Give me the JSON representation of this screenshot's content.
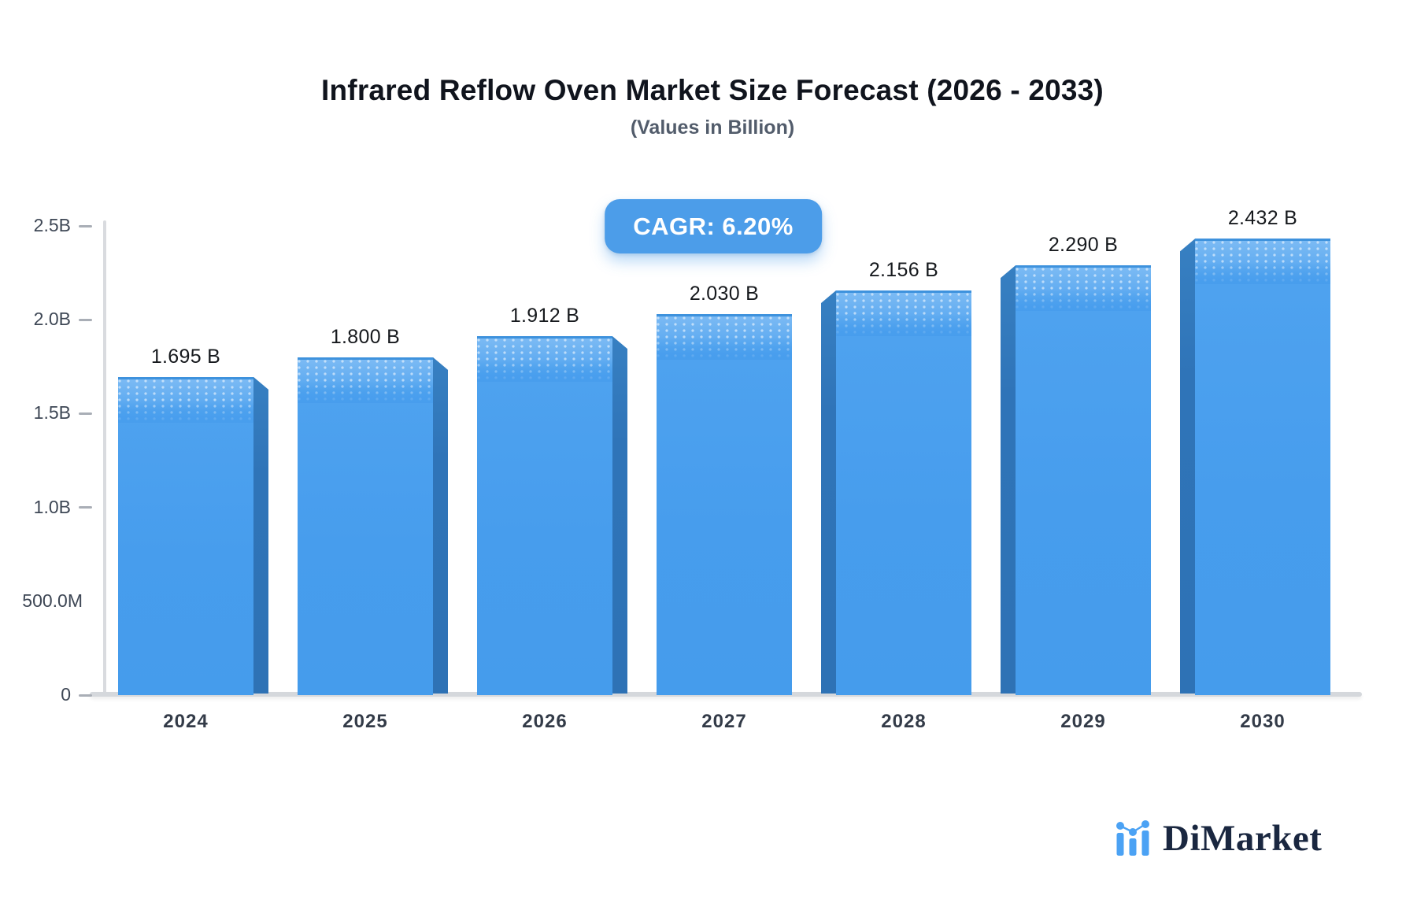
{
  "chart_data": {
    "type": "bar",
    "title": "Infrared Reflow Oven Market Size Forecast (2026 - 2033)",
    "subtitle": "(Values in Billion)",
    "cagr_label": "CAGR: 6.20%",
    "categories": [
      "2024",
      "2025",
      "2026",
      "2027",
      "2028",
      "2029",
      "2030"
    ],
    "values": [
      1.695,
      1.8,
      1.912,
      2.03,
      2.156,
      2.29,
      2.432
    ],
    "value_labels": [
      "1.695 B",
      "1.800 B",
      "1.912 B",
      "2.030 B",
      "2.156 B",
      "2.290 B",
      "2.432 B"
    ],
    "unit": "Billion",
    "ylim": [
      0,
      2.5
    ],
    "yticks": [
      {
        "value": 2.5,
        "label": "2.5B",
        "dash": true
      },
      {
        "value": 2.0,
        "label": "2.0B",
        "dash": true
      },
      {
        "value": 1.5,
        "label": "1.5B",
        "dash": true
      },
      {
        "value": 1.0,
        "label": "1.0B",
        "dash": true
      },
      {
        "value": 0.5,
        "label": "500.0M",
        "dash": false
      },
      {
        "value": 0.0,
        "label": "0",
        "dash": true
      }
    ],
    "grid": false,
    "legend": false,
    "bar_face_color": "#4A9FEE",
    "bar_side_color": "#2F74B8",
    "bar_top_dot_color": "#8CC4F6"
  },
  "badge": {
    "bg_color": "#4C9DE9",
    "text_color": "#FFFFFF"
  },
  "logo": {
    "text": "DiMarket",
    "icon": "mini-bar-chart-icon",
    "text_color": "#1A2740",
    "icon_color": "#4BA2F4"
  }
}
